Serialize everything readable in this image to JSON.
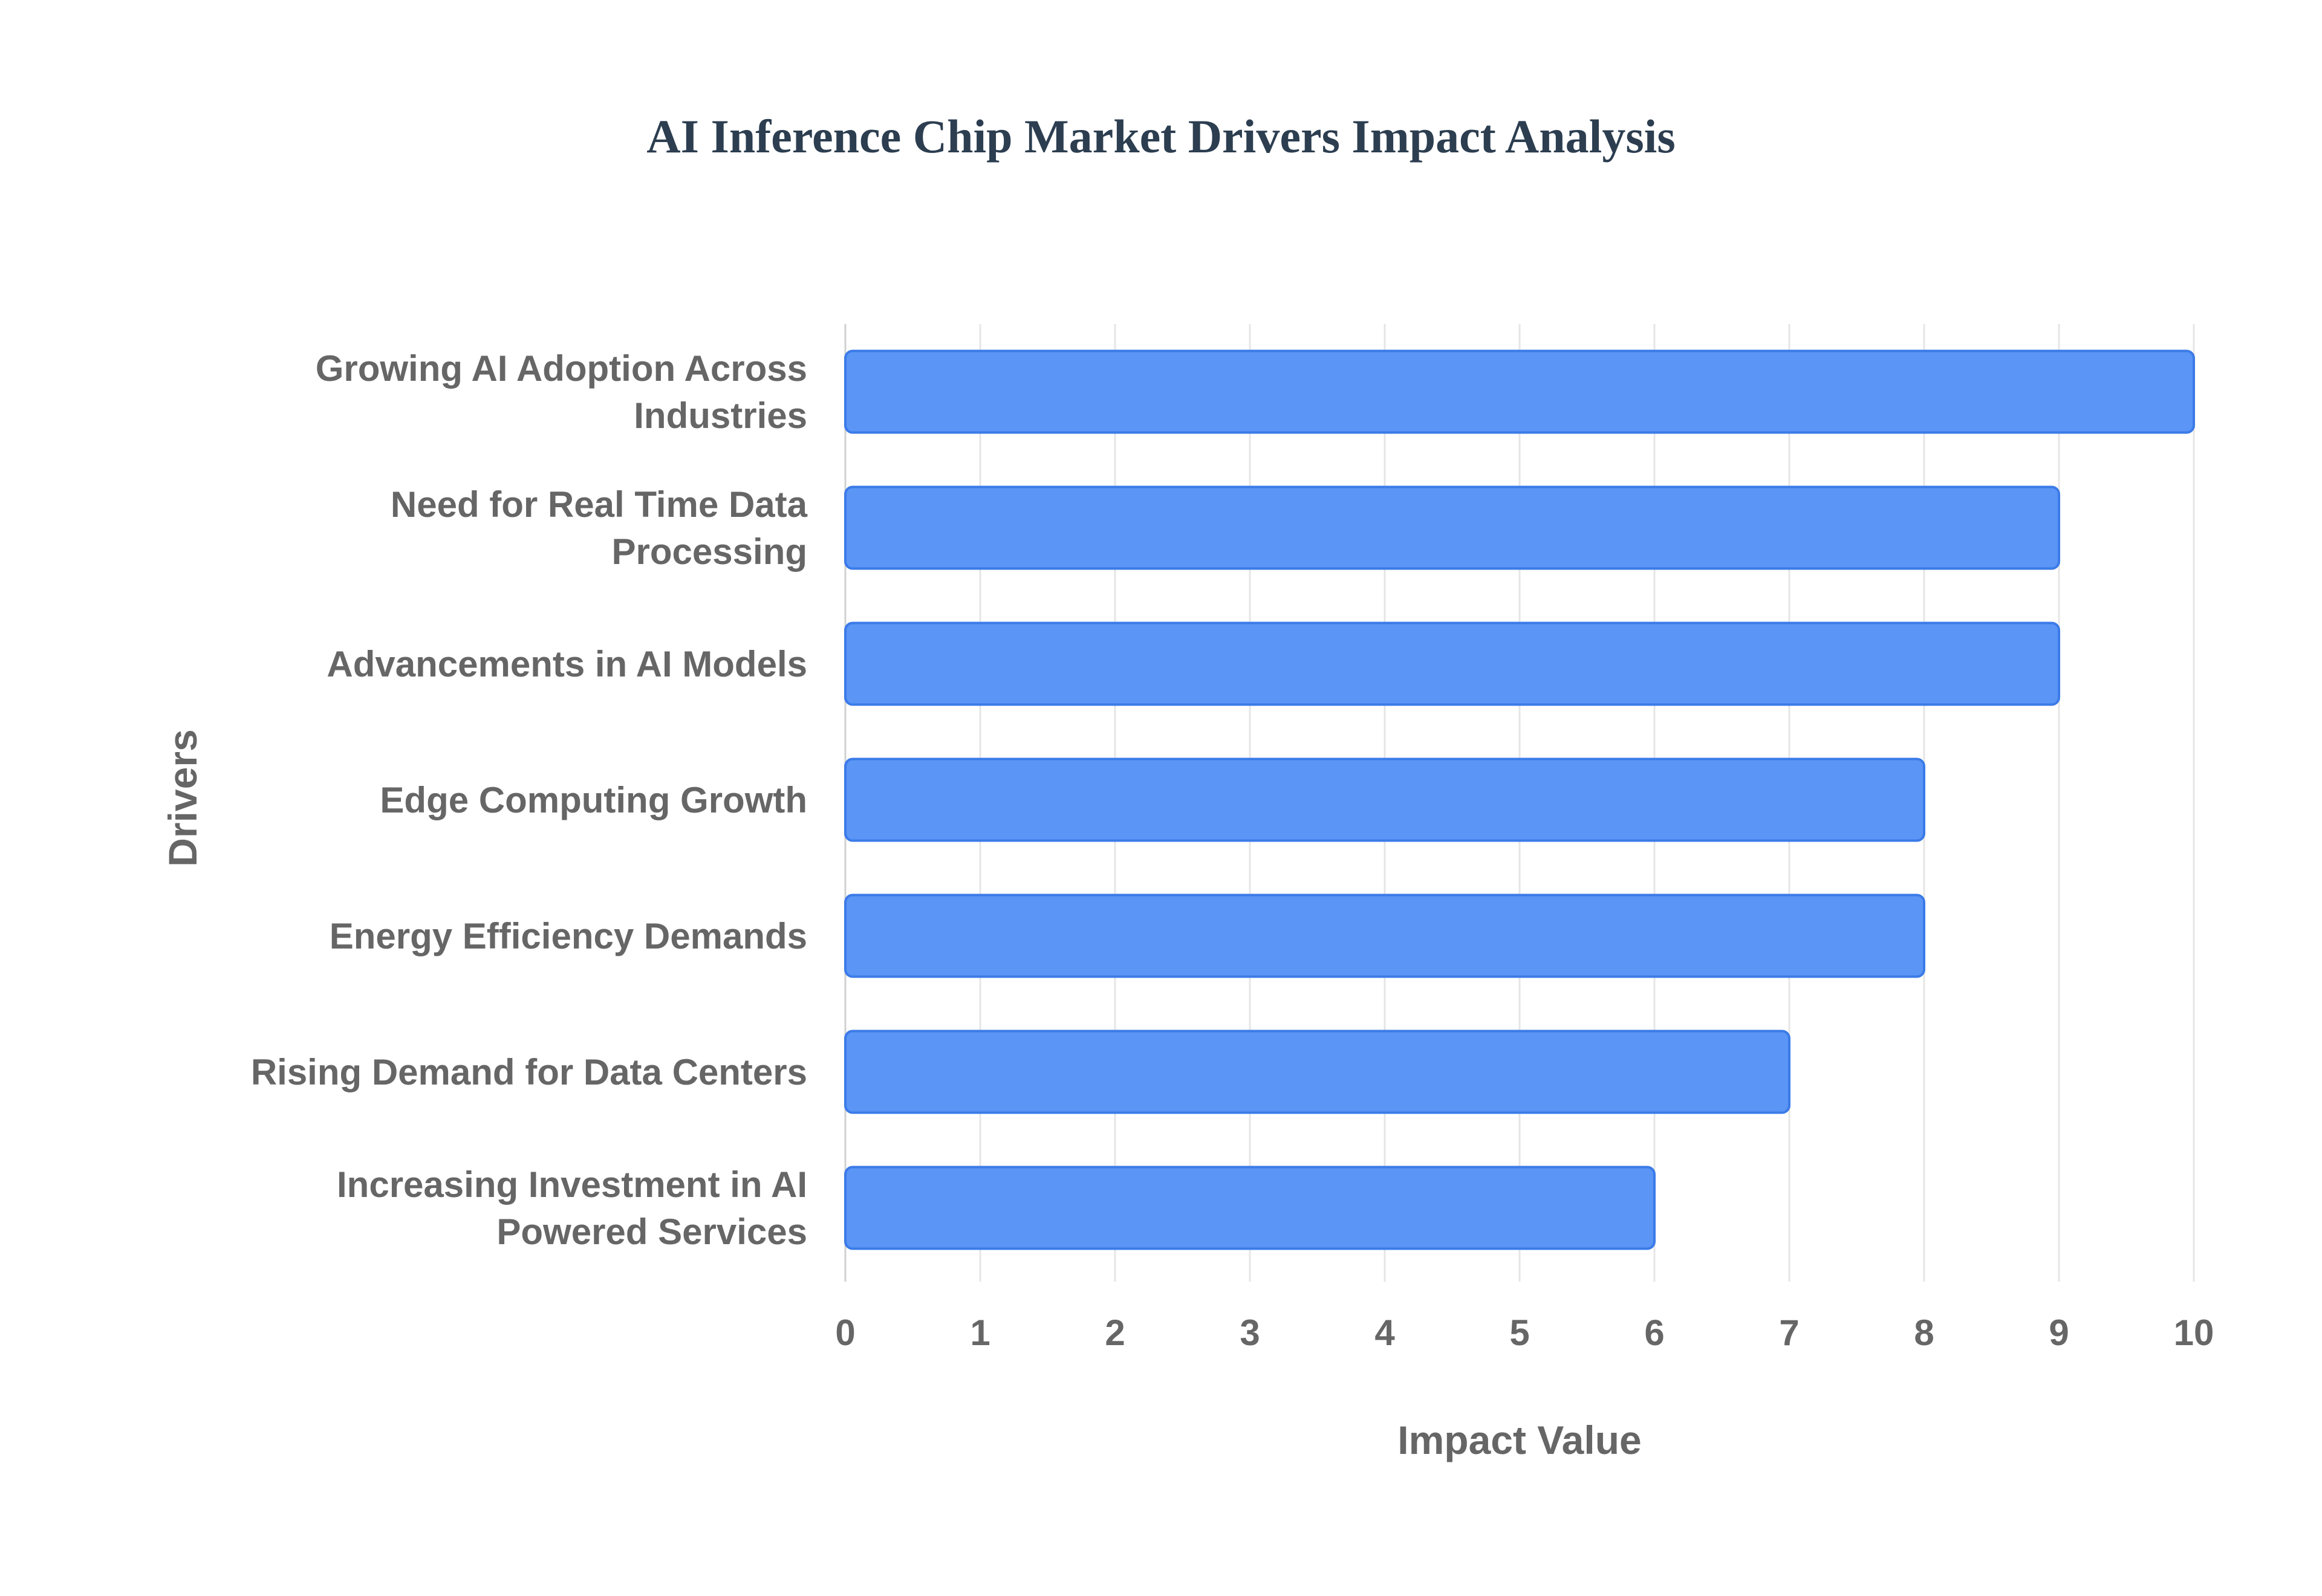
{
  "chart_data": {
    "type": "bar",
    "orientation": "horizontal",
    "title": "AI Inference Chip Market Drivers Impact Analysis",
    "xlabel": "Impact Value",
    "ylabel": "Drivers",
    "xlim": [
      0,
      10
    ],
    "x_ticks": [
      "0",
      "1",
      "2",
      "3",
      "4",
      "5",
      "6",
      "7",
      "8",
      "9",
      "10"
    ],
    "grid": true,
    "legend": "none",
    "bar_color": "#5b95f5",
    "bar_border_color": "#3b7be8",
    "categories": [
      [
        "Growing AI Adoption Across",
        "Industries"
      ],
      [
        "Need for Real Time Data",
        "Processing"
      ],
      [
        "Advancements in AI Models"
      ],
      [
        "Edge Computing Growth"
      ],
      [
        "Energy Efficiency Demands"
      ],
      [
        "Rising Demand for Data Centers"
      ],
      [
        "Increasing Investment in AI",
        "Powered Services"
      ]
    ],
    "values": [
      10,
      9,
      9,
      8,
      8,
      7,
      6
    ]
  }
}
